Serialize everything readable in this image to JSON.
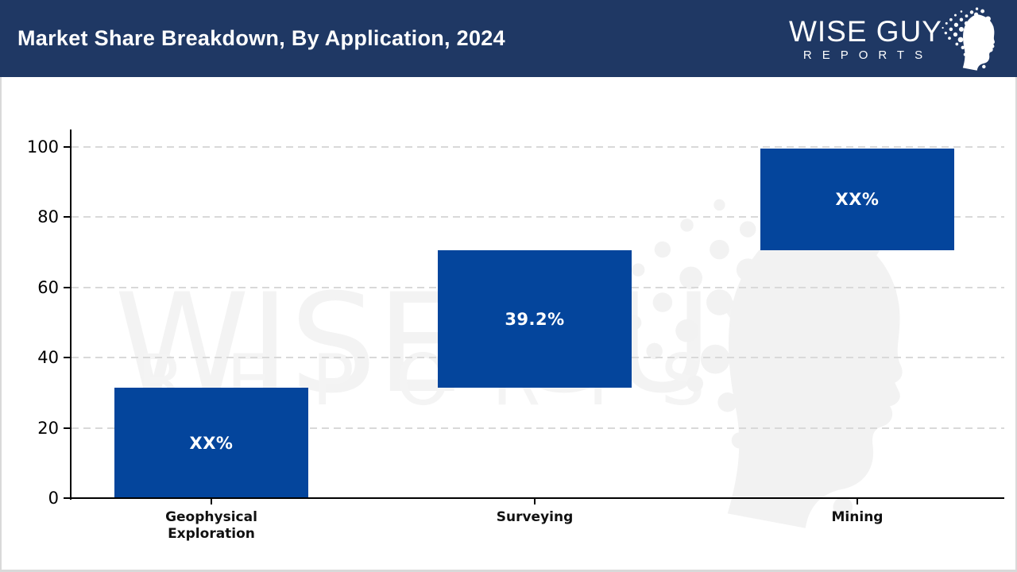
{
  "header": {
    "title": "Market Share Breakdown, By Application, 2024",
    "logo": {
      "wordmark": "WISE GUY",
      "subtext": "REPORTS"
    }
  },
  "watermark": {
    "line1": "WISE GUY",
    "line2": "REPORTS"
  },
  "colors": {
    "header_bg": "#1f3864",
    "bar": "#04459c",
    "bar_label": "#ffffff",
    "gridline": "#d9d9d9",
    "axis": "#000000",
    "watermark": "#f2f2f2"
  },
  "chart_data": {
    "type": "bar",
    "subtype": "floating-waterfall",
    "title": "Market Share Breakdown, By Application, 2024",
    "categories": [
      [
        "Geophysical",
        "Exploration"
      ],
      [
        "Surveying"
      ],
      [
        "Mining"
      ]
    ],
    "segments": [
      {
        "category": "Geophysical Exploration",
        "start": 0,
        "end": 31.4,
        "label": "XX%"
      },
      {
        "category": "Surveying",
        "start": 31.4,
        "end": 70.6,
        "label": "39.2%"
      },
      {
        "category": "Mining",
        "start": 70.6,
        "end": 99.5,
        "label": "XX%"
      }
    ],
    "yticks": [
      0,
      20,
      40,
      60,
      80,
      100
    ],
    "ylim": [
      0,
      105
    ],
    "xlabel": "",
    "ylabel": "",
    "grid": "horizontal-dashed",
    "legend": "none",
    "bar_color": "#04459c"
  }
}
